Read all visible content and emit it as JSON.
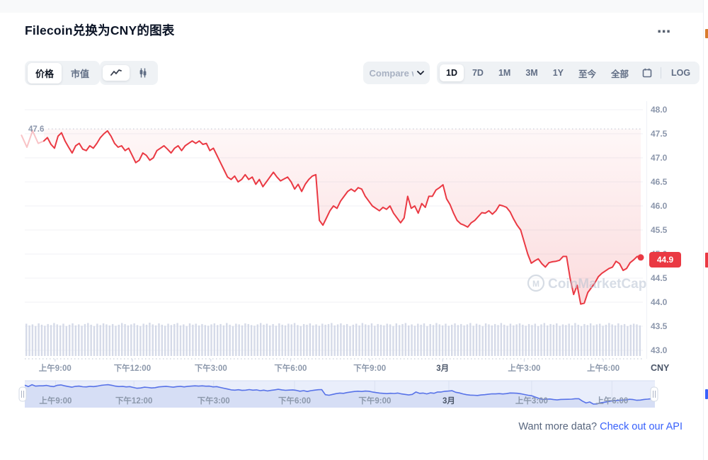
{
  "colors": {
    "accent_red": "#ea3943",
    "link_blue": "#3861fb",
    "nav_line": "#5873e8",
    "muted": "#8c98ab",
    "dark": "#0d1421"
  },
  "header": {
    "title": "Filecoin兑换为CNY的图表",
    "more_menu": "⋯"
  },
  "toolbar": {
    "metric_toggle": [
      {
        "id": "price",
        "label": "价格",
        "selected": true
      },
      {
        "id": "marketcap",
        "label": "市值",
        "selected": false
      }
    ],
    "chart_type_toggle": [
      {
        "id": "line",
        "icon": "line-chart-icon",
        "selected": true
      },
      {
        "id": "candles",
        "icon": "candlestick-icon",
        "selected": false
      }
    ],
    "compare_label": "Compare w",
    "ranges": [
      {
        "label": "1D",
        "selected": true
      },
      {
        "label": "7D",
        "selected": false
      },
      {
        "label": "1M",
        "selected": false
      },
      {
        "label": "3M",
        "selected": false
      },
      {
        "label": "1Y",
        "selected": false
      },
      {
        "label": "至今",
        "selected": false
      },
      {
        "label": "全部",
        "selected": false
      }
    ],
    "log_label": "LOG"
  },
  "watermark": {
    "text": "CoinMarketCap"
  },
  "footer": {
    "prompt": "Want more data?",
    "link": "Check out our API"
  },
  "chart_data": {
    "type": "line",
    "title": "Filecoin兑换为CNY的图表",
    "currency_label": "CNY",
    "current_price_label": "44.9",
    "current_price": 44.93,
    "max_line": {
      "label": "47.6",
      "value": 47.6
    },
    "ylim": [
      43.0,
      48.0
    ],
    "y_ticks": [
      "48.0",
      "47.5",
      "47.0",
      "46.5",
      "46.0",
      "45.5",
      "45.0",
      "44.5",
      "44.0",
      "43.5",
      "43.0"
    ],
    "x_ticks": [
      {
        "label": "上午9:00",
        "f": 0.049,
        "bold": false
      },
      {
        "label": "下午12:00",
        "f": 0.174,
        "bold": false
      },
      {
        "label": "下午3:00",
        "f": 0.301,
        "bold": false
      },
      {
        "label": "下午6:00",
        "f": 0.43,
        "bold": false
      },
      {
        "label": "下午9:00",
        "f": 0.558,
        "bold": false
      },
      {
        "label": "3月",
        "f": 0.676,
        "bold": true
      },
      {
        "label": "上午3:00",
        "f": 0.808,
        "bold": false
      },
      {
        "label": "上午6:00",
        "f": 0.936,
        "bold": false
      }
    ],
    "pre_values": [
      47.48,
      47.22,
      47.56,
      47.3,
      47.35
    ],
    "values": [
      47.35,
      47.42,
      47.28,
      47.2,
      47.45,
      47.52,
      47.35,
      47.22,
      47.1,
      47.25,
      47.3,
      47.18,
      47.15,
      47.25,
      47.2,
      47.3,
      47.42,
      47.5,
      47.56,
      47.45,
      47.3,
      47.22,
      47.25,
      47.15,
      47.2,
      47.05,
      46.9,
      46.95,
      47.1,
      47.05,
      46.95,
      47.0,
      47.15,
      47.2,
      47.25,
      47.18,
      47.1,
      47.2,
      47.25,
      47.15,
      47.25,
      47.3,
      47.35,
      47.3,
      47.35,
      47.28,
      47.3,
      47.15,
      47.2,
      47.05,
      46.9,
      46.75,
      46.6,
      46.55,
      46.62,
      46.5,
      46.55,
      46.65,
      46.55,
      46.6,
      46.45,
      46.55,
      46.4,
      46.5,
      46.6,
      46.7,
      46.6,
      46.52,
      46.56,
      46.6,
      46.5,
      46.35,
      46.45,
      46.3,
      46.45,
      46.55,
      46.62,
      46.65,
      45.7,
      45.6,
      45.75,
      45.9,
      46.0,
      45.95,
      46.1,
      46.2,
      46.3,
      46.35,
      46.3,
      46.38,
      46.35,
      46.2,
      46.1,
      46.0,
      45.95,
      45.9,
      45.97,
      45.93,
      46.0,
      45.85,
      45.75,
      45.65,
      45.75,
      46.2,
      45.95,
      46.0,
      45.85,
      46.05,
      45.97,
      46.2,
      46.2,
      46.33,
      46.38,
      46.44,
      46.15,
      46.03,
      45.85,
      45.7,
      45.63,
      45.6,
      45.56,
      45.65,
      45.7,
      45.78,
      45.86,
      45.85,
      45.9,
      45.83,
      45.9,
      46.02,
      46.0,
      45.97,
      45.88,
      45.73,
      45.6,
      45.5,
      45.25,
      45.0,
      44.81,
      44.86,
      44.9,
      44.8,
      44.73,
      44.82,
      44.84,
      44.85,
      44.87,
      44.95,
      44.95,
      44.5,
      44.16,
      44.35,
      43.96,
      43.98,
      44.2,
      44.3,
      44.4,
      44.53,
      44.6,
      44.65,
      44.7,
      44.73,
      44.85,
      44.8,
      44.66,
      44.7,
      44.82,
      44.88,
      44.95,
      44.93
    ],
    "volume_rel": [
      0.95,
      0.9,
      0.93,
      0.88,
      0.96,
      0.92,
      0.89,
      0.94,
      0.91,
      0.97,
      0.93,
      0.9,
      0.95,
      0.88,
      0.92,
      0.96,
      0.9,
      0.93,
      0.89,
      0.94,
      0.97,
      0.92,
      0.88,
      0.95,
      0.91,
      0.96,
      0.93,
      0.9,
      0.94,
      0.89,
      0.92,
      0.97,
      0.94,
      0.9,
      0.93,
      0.96,
      0.91,
      0.88,
      0.95,
      0.92,
      0.98,
      0.93,
      0.9,
      0.96,
      0.92,
      0.89,
      0.95,
      0.91,
      0.94,
      0.97,
      0.9,
      0.93,
      0.88,
      0.96,
      0.92,
      0.95,
      0.9,
      0.94,
      0.91,
      0.89,
      0.93,
      0.96,
      0.91,
      0.94,
      0.9,
      0.97,
      0.92,
      0.88,
      0.95,
      0.93,
      0.9,
      0.96,
      0.94,
      0.91,
      0.89,
      0.93,
      0.97,
      0.92,
      0.95,
      0.9,
      0.94,
      0.89,
      0.96,
      0.92,
      0.9,
      0.95,
      0.93,
      0.97,
      0.91,
      0.88,
      0.94,
      0.92,
      0.96,
      0.9,
      0.93,
      0.89,
      0.95,
      0.92,
      0.94,
      0.97,
      0.9,
      0.93,
      0.96,
      0.91,
      0.94,
      0.88,
      0.92,
      0.95,
      0.9,
      0.97,
      0.93,
      0.91,
      0.96,
      0.89,
      0.94,
      0.92,
      0.9,
      0.95,
      0.93,
      0.88,
      0.96,
      0.91,
      0.94,
      0.97,
      0.9,
      0.93,
      0.89,
      0.95,
      0.92,
      0.96,
      0.88,
      0.94,
      0.91,
      0.97,
      0.93,
      0.9,
      0.95,
      0.89,
      0.92,
      0.96,
      0.91,
      0.94,
      0.9,
      0.93,
      0.97,
      0.89,
      0.95,
      0.92,
      0.88,
      0.96,
      0.93,
      0.9,
      0.94,
      0.91,
      0.97,
      0.92,
      0.89,
      0.95,
      0.9,
      0.93,
      0.96,
      0.92,
      0.89,
      0.94,
      0.91,
      0.95,
      0.88,
      0.93,
      0.97,
      0.9,
      0.94,
      0.92,
      0.96,
      0.89,
      0.93,
      0.91,
      0.95,
      0.9,
      0.97,
      0.92,
      0.88,
      0.94,
      0.91,
      0.96,
      0.9,
      0.93,
      0.95,
      0.89,
      0.92,
      0.97,
      0.93,
      0.9,
      0.96,
      0.91,
      0.94,
      0.88,
      0.92,
      0.95,
      0.93,
      0.9
    ],
    "legend": "none",
    "grid": "horizontal"
  }
}
